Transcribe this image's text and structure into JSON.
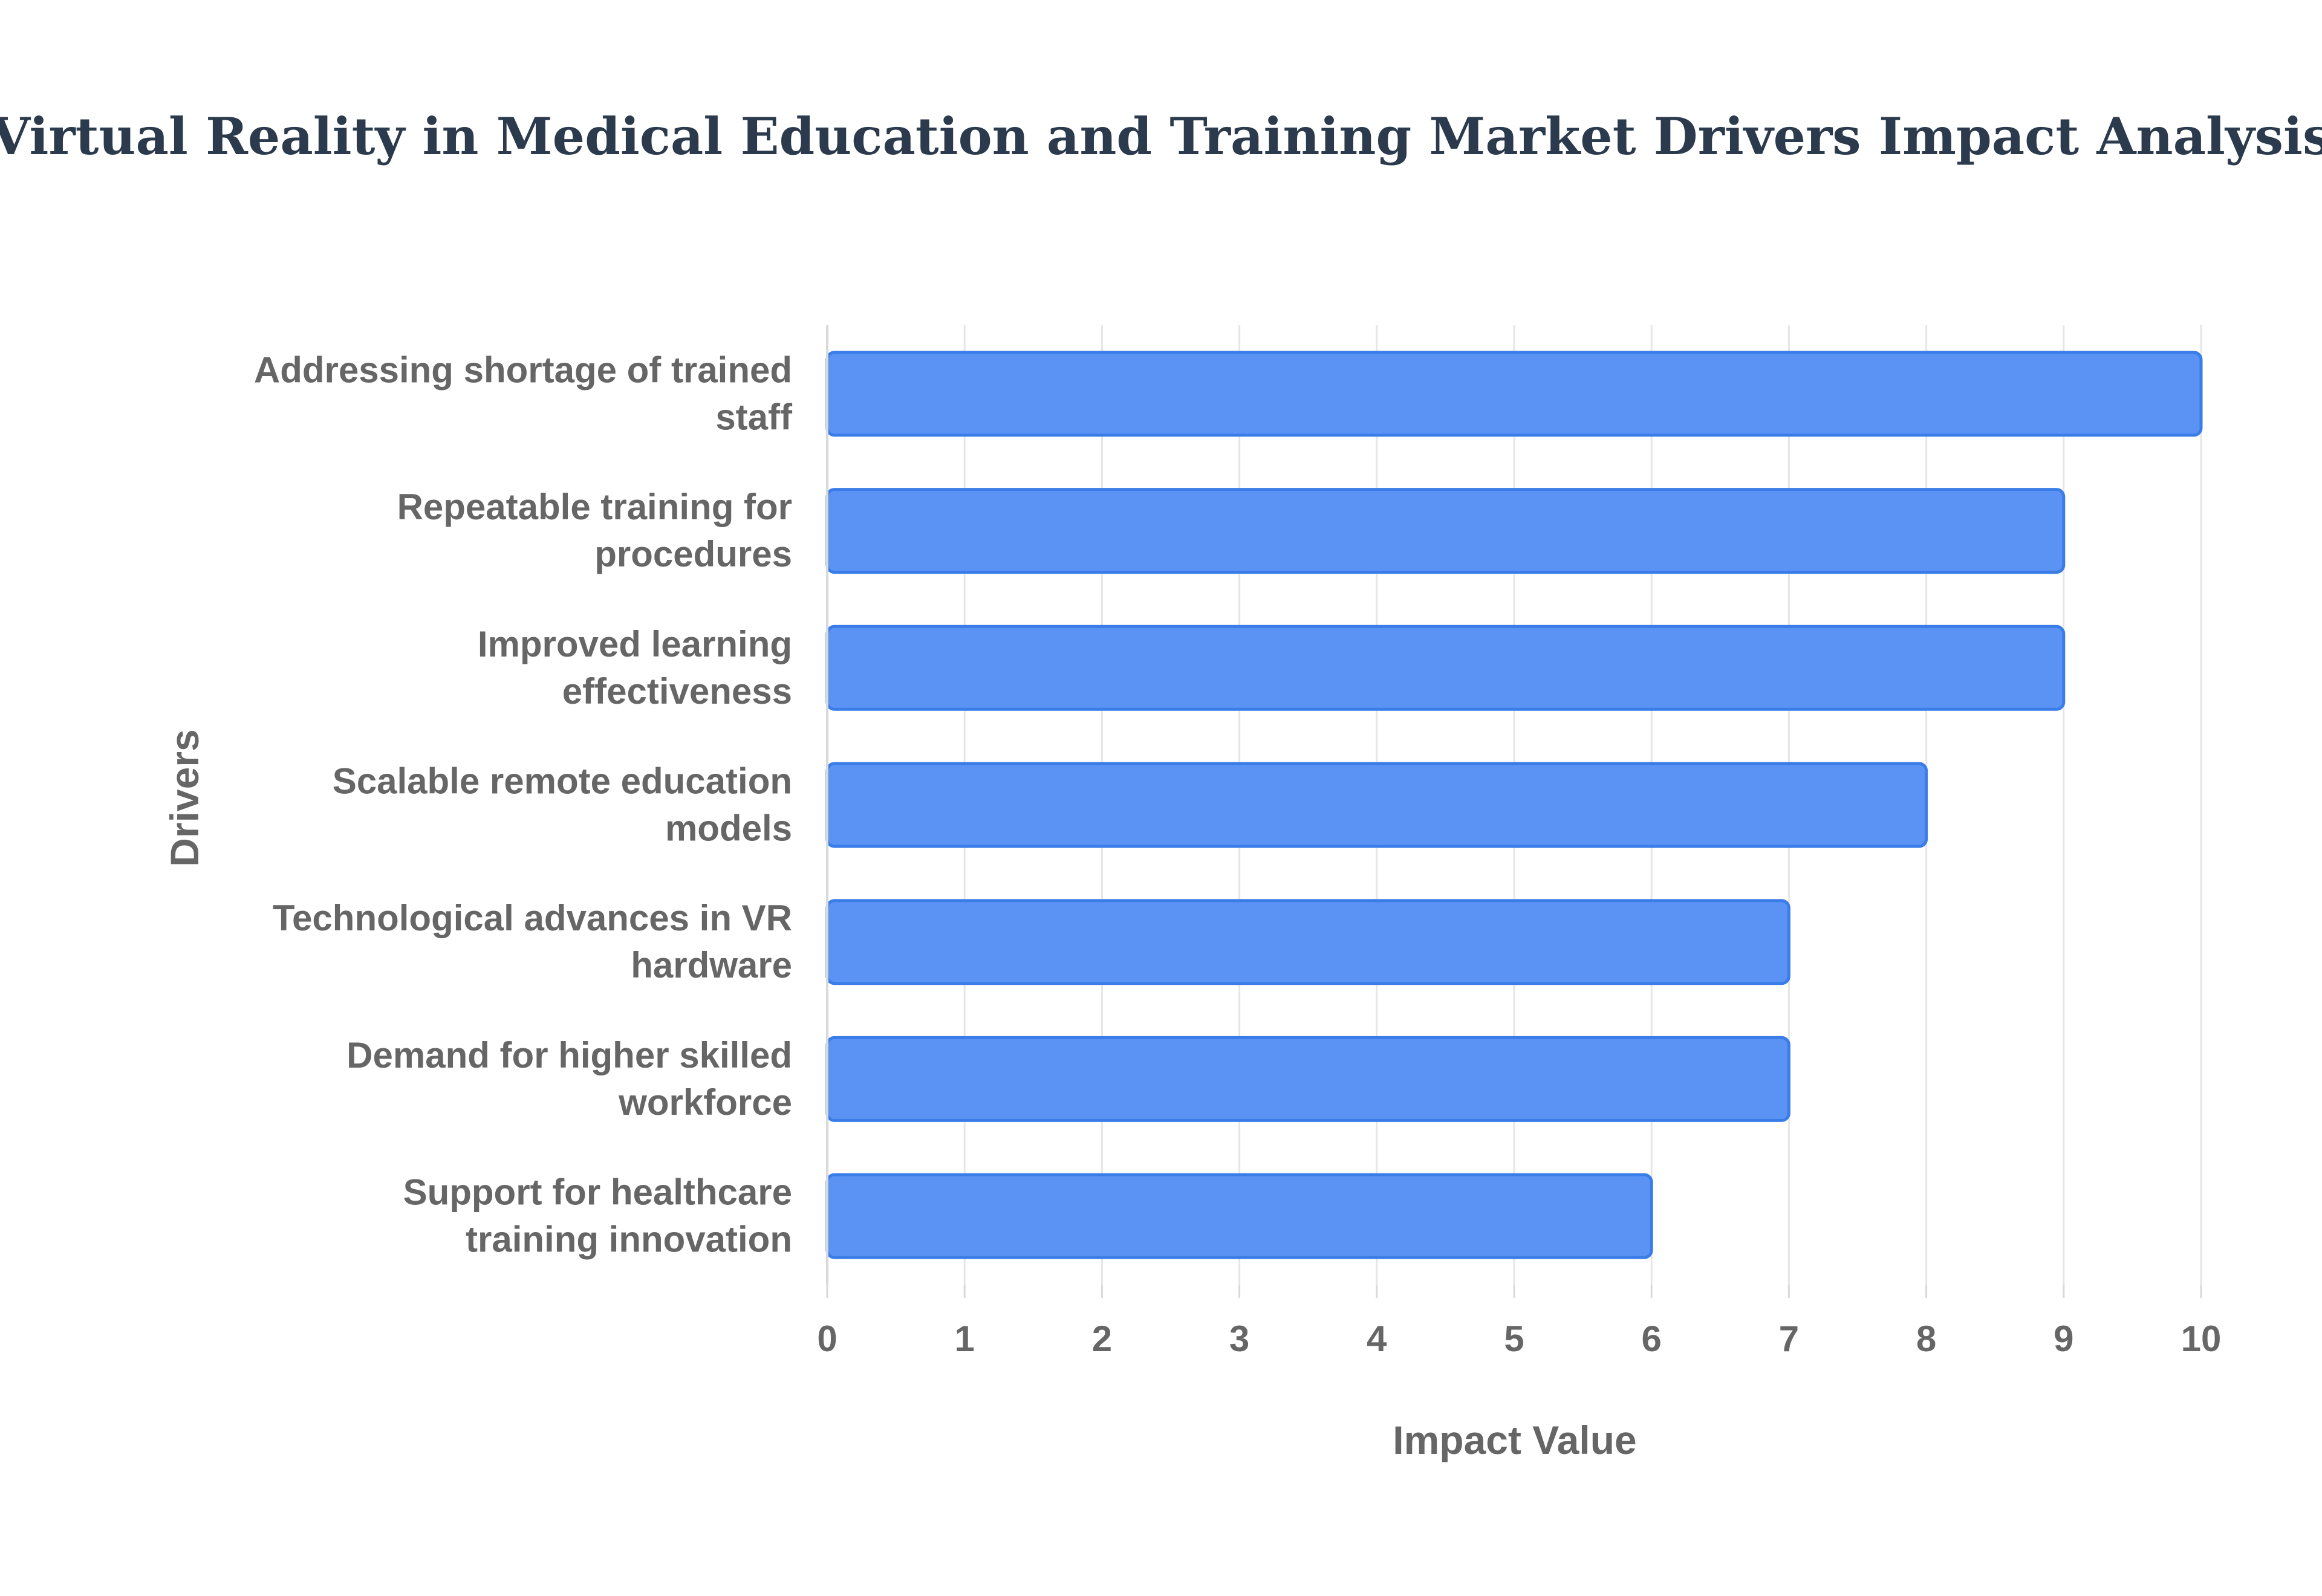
{
  "chart_data": {
    "type": "bar",
    "orientation": "horizontal",
    "title": "Virtual Reality in Medical Education and Training Market Drivers Impact Analysis",
    "xlabel": "Impact Value",
    "ylabel": "Drivers",
    "categories": [
      [
        "Addressing shortage of trained",
        "staff"
      ],
      [
        "Repeatable training for",
        "procedures"
      ],
      [
        "Improved learning",
        "effectiveness"
      ],
      [
        "Scalable remote education",
        "models"
      ],
      [
        "Technological advances in VR",
        "hardware"
      ],
      [
        "Demand for higher skilled",
        "workforce"
      ],
      [
        "Support for healthcare",
        "training innovation"
      ]
    ],
    "values": [
      10,
      9,
      9,
      8,
      7,
      7,
      6
    ],
    "xlim": [
      0,
      10
    ],
    "xticks": [
      "0",
      "1",
      "2",
      "3",
      "4",
      "5",
      "6",
      "7",
      "8",
      "9",
      "10"
    ],
    "grid": true,
    "legend": "none",
    "colors": {
      "bar_fill": "#5b93f5",
      "bar_stroke": "#3b7de8",
      "grid": "#e6e6e6",
      "axis": "#d9d9d9"
    }
  }
}
